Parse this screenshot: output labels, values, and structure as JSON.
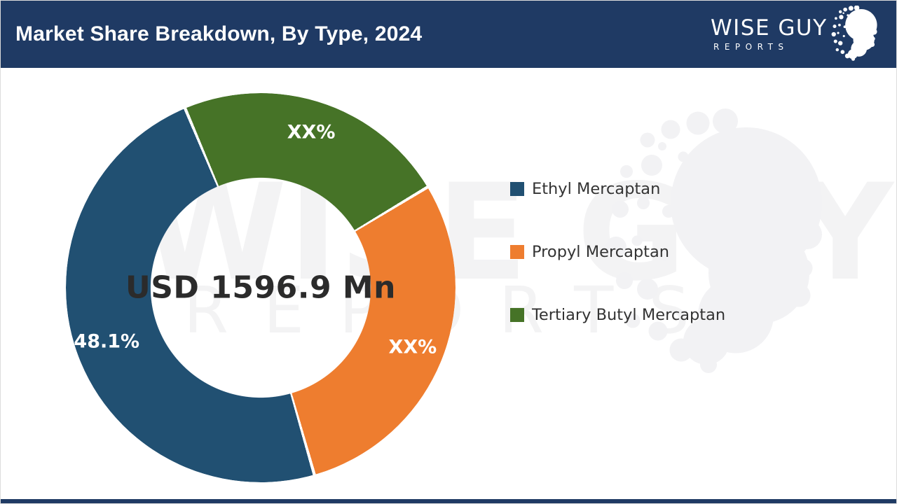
{
  "header": {
    "title": "Market Share Breakdown, By Type, 2024",
    "logo": {
      "line1": "WISE GUY",
      "line2": "REPORTS"
    }
  },
  "watermark": {
    "line1": "WISE GUY",
    "line2": "REPORTS"
  },
  "colors": {
    "header_bg": "#1f3a64",
    "footer_bg": "#1f3a64",
    "ethyl_blue": "#215072",
    "propyl_orange": "#ee7d2f",
    "tertiary_green": "#467327"
  },
  "chart_data": {
    "type": "pie",
    "subtype": "donut",
    "title": "Market Share Breakdown, By Type, 2024",
    "center_label": "USD 1596.9 Mn",
    "start_angle_deg": 164,
    "legend_position": "right",
    "segments": [
      {
        "name": "Ethyl Mercaptan",
        "value": 48.1,
        "label": "48.1%",
        "color": "#215072"
      },
      {
        "name": "Tertiary Butyl Mercaptan",
        "value": 22.7,
        "label": "XX%",
        "color": "#467327"
      },
      {
        "name": "Propyl Mercaptan",
        "value": 29.2,
        "label": "XX%",
        "color": "#ee7d2f"
      }
    ]
  },
  "legend": {
    "items": [
      {
        "label": "Ethyl Mercaptan",
        "color": "#215072"
      },
      {
        "label": "Propyl Mercaptan",
        "color": "#ee7d2f"
      },
      {
        "label": "Tertiary Butyl Mercaptan",
        "color": "#467327"
      }
    ]
  }
}
